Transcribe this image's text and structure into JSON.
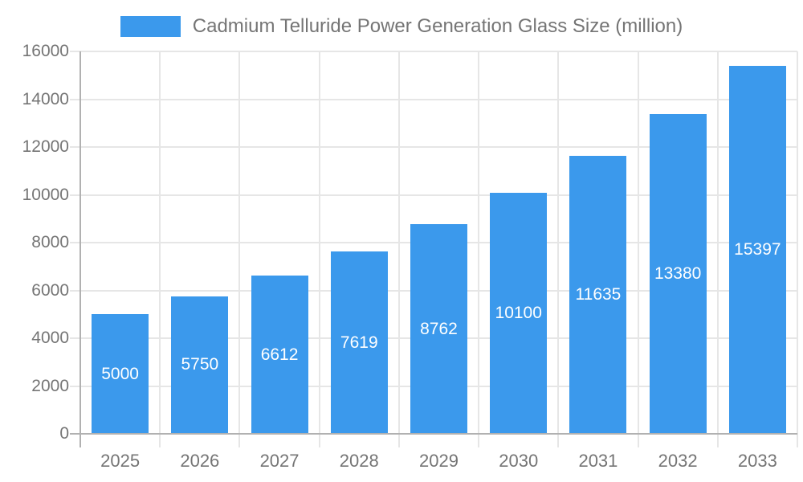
{
  "legend": {
    "label": "Cadmium Telluride Power Generation Glass Size (million)"
  },
  "colors": {
    "bar": "#3b99ec",
    "bar_label_text": "#ffffff",
    "axis_line": "#b1b1b1",
    "grid_line": "#e6e6e6",
    "axis_text": "#757575",
    "background": "#ffffff"
  },
  "chart_data": {
    "type": "bar",
    "title": "Cadmium Telluride Power Generation Glass Size (million)",
    "categories": [
      "2025",
      "2026",
      "2027",
      "2028",
      "2029",
      "2030",
      "2031",
      "2032",
      "2033"
    ],
    "values": [
      5000,
      5750,
      6612,
      7619,
      8762,
      10100,
      11635,
      13380,
      15397
    ],
    "xlabel": "",
    "ylabel": "",
    "ylim": [
      0,
      16000
    ],
    "ytick_step": 2000,
    "yticks": [
      0,
      2000,
      4000,
      6000,
      8000,
      10000,
      12000,
      14000,
      16000
    ],
    "grid": true,
    "legend_position": "top",
    "bar_value_labels": "inside-centered"
  }
}
